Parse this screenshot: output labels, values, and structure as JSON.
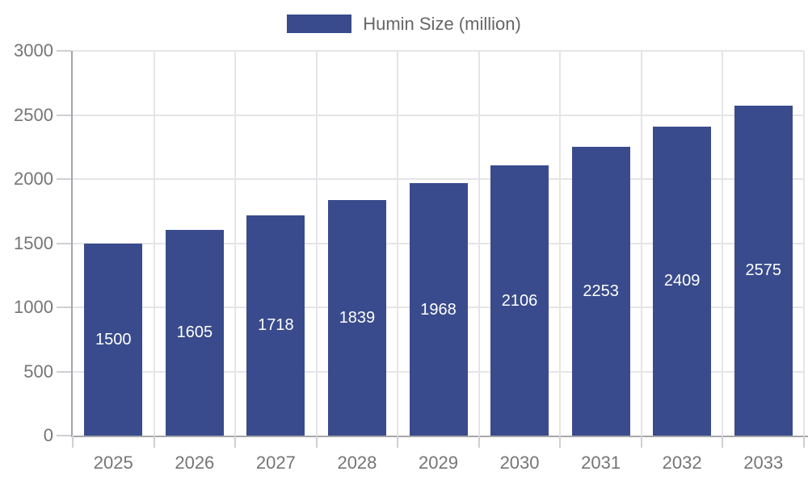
{
  "chart_data": {
    "type": "bar",
    "legend_label": "Humin Size (million)",
    "legend_position": "top",
    "categories": [
      "2025",
      "2026",
      "2027",
      "2028",
      "2029",
      "2030",
      "2031",
      "2032",
      "2033"
    ],
    "series": [
      {
        "name": "Humin Size (million)",
        "values": [
          1500,
          1605,
          1718,
          1839,
          1968,
          2106,
          2253,
          2409,
          2575
        ]
      }
    ],
    "bar_value_labels": [
      "1500",
      "1605",
      "1718",
      "1839",
      "1968",
      "2106",
      "2253",
      "2409",
      "2575"
    ],
    "ylim": [
      0,
      3000
    ],
    "yticks": [
      0,
      500,
      1000,
      1500,
      2000,
      2500,
      3000
    ],
    "grid": true,
    "colors": {
      "bar": "#394B8C",
      "axis": "#A6A6AA",
      "gridline": "#E5E5E8",
      "tick": "#CFCFD4",
      "axis_label": "#757575",
      "value_label": "#FFFFFF",
      "legend_text": "#666666",
      "background": "#FFFFFF"
    }
  }
}
